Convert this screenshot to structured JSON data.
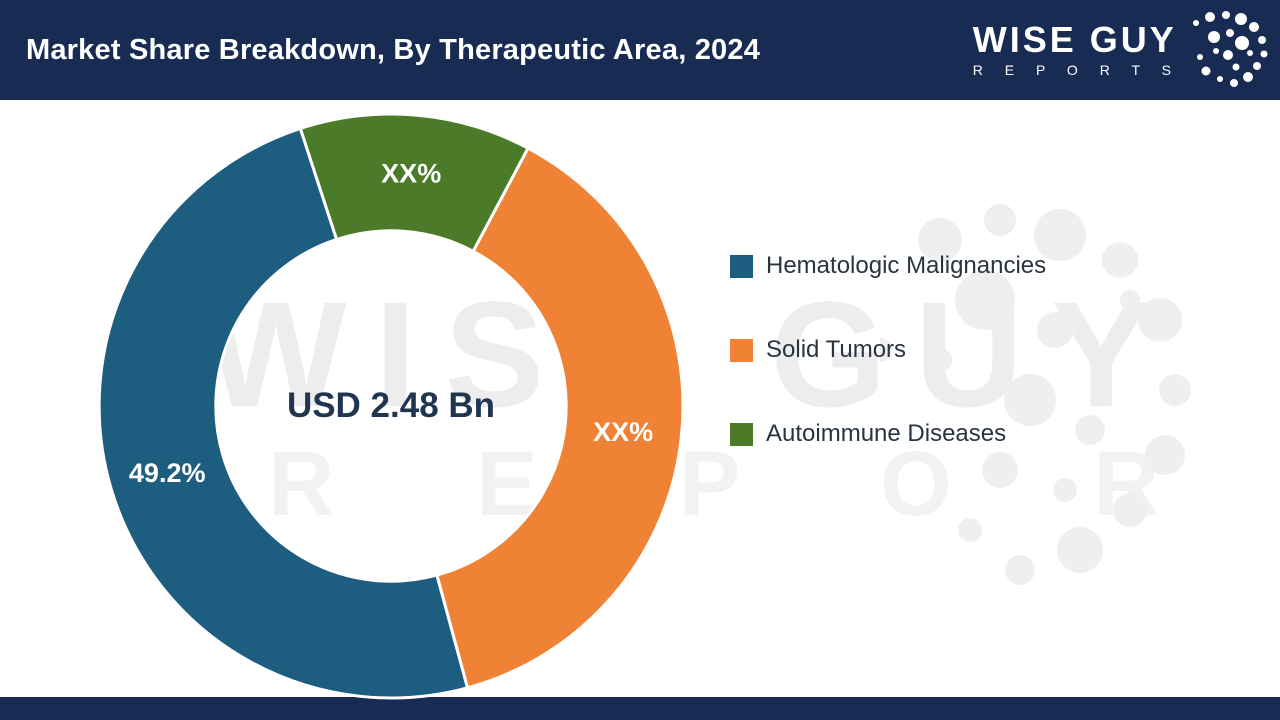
{
  "header": {
    "title": "Market Share Breakdown, By Therapeutic Area, 2024",
    "logo_line1": "WISE GUY",
    "logo_line2": "R E P O R T S"
  },
  "chart_data": {
    "type": "pie",
    "subtype": "donut",
    "title": "Market Share Breakdown, By Therapeutic Area, 2024",
    "center_label": "USD 2.48 Bn",
    "start_angle_deg": 164.8,
    "inner_radius_ratio": 0.6,
    "legend_position": "right",
    "segments": [
      {
        "name": "Hematologic Malignancies",
        "value": 49.2,
        "label": "49.2%",
        "color": "#1d5d80"
      },
      {
        "name": "Autoimmune Diseases",
        "value": 12.8,
        "label": "XX%",
        "color": "#4b7a28"
      },
      {
        "name": "Solid Tumors",
        "value": 38.0,
        "label": "XX%",
        "color": "#f08236"
      }
    ],
    "legend_order": [
      0,
      2,
      1
    ]
  },
  "watermark": {
    "line1": "WISE GUY",
    "line2": "R E P O R T S"
  },
  "colors": {
    "header_bg": "#182b53",
    "footer_bg": "#182b53",
    "center_text": "#1f3550",
    "legend_text": "#2a3440"
  }
}
